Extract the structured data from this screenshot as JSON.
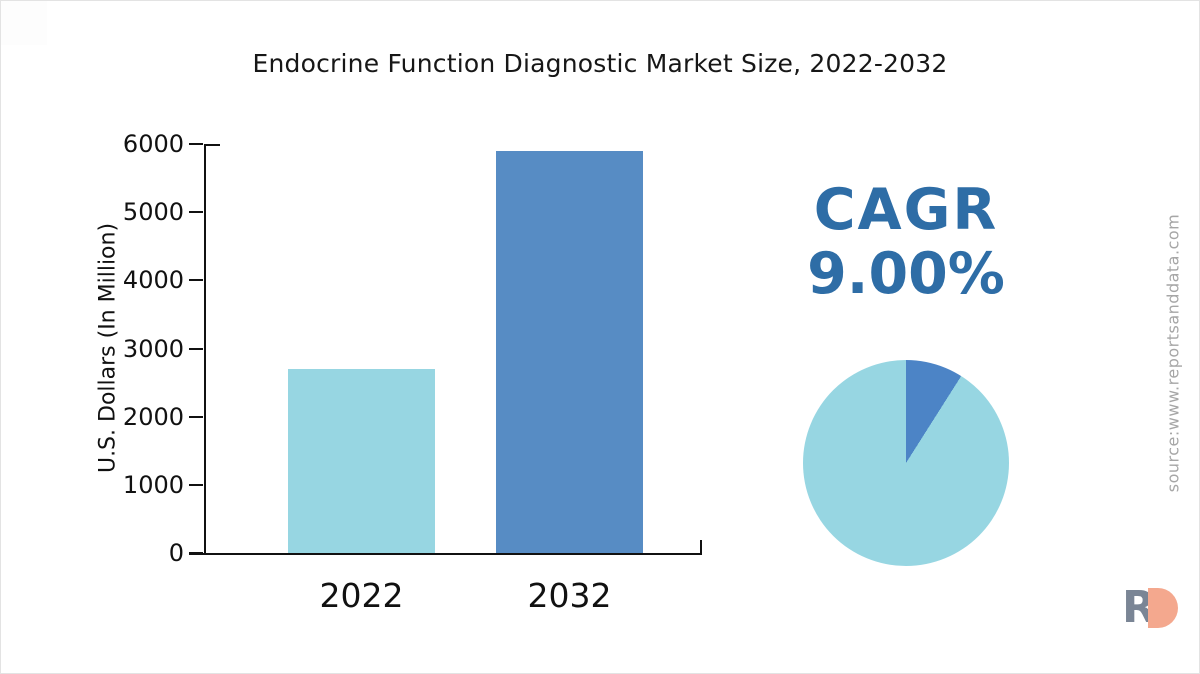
{
  "chart_data": [
    {
      "type": "bar",
      "title": "Endocrine Function Diagnostic Market Size, 2022-2032",
      "categories": [
        "2022",
        "2032"
      ],
      "values": [
        2700,
        5900
      ],
      "xlabel": "",
      "ylabel": "U.S. Dollars (In Million)",
      "ylim": [
        0,
        6000
      ],
      "yticks": [
        0,
        1000,
        2000,
        3000,
        4000,
        5000,
        6000
      ],
      "bar_colors": [
        "#97d6e2",
        "#578cc4"
      ],
      "grid": false,
      "legend": "none"
    },
    {
      "type": "pie",
      "values": [
        9,
        91
      ],
      "colors": [
        "#4c84c6",
        "#97d6e2"
      ],
      "start_angle_deg": 0,
      "direction": "clockwise",
      "labels_shown": false
    }
  ],
  "cagr": {
    "label": "CAGR",
    "value": "9.00%",
    "color": "#2e6da6"
  },
  "watermark": {
    "source_text": "source:www.reportsanddata.com"
  },
  "logo": {
    "letter": "R",
    "r_color": "#7a8595",
    "d_color": "#f4a88e"
  }
}
